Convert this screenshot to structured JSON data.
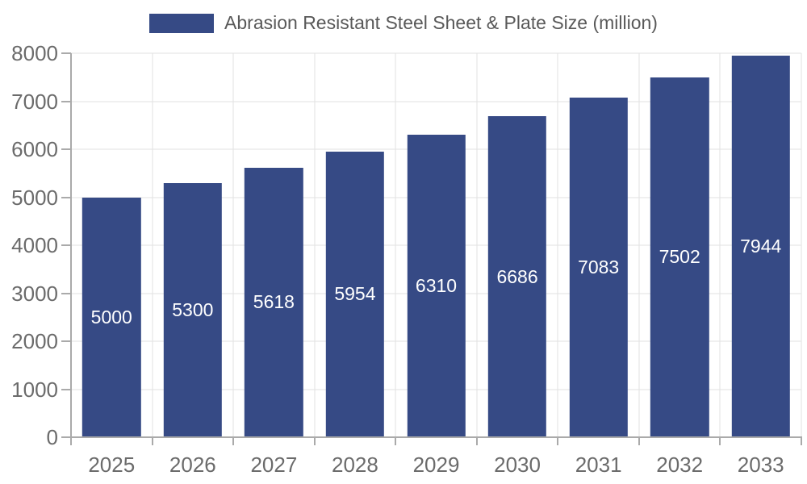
{
  "legend": {
    "label": "Abrasion Resistant Steel Sheet & Plate Size (million)"
  },
  "colors": {
    "bar": "#364A85",
    "grid_line": "#e2e2e2",
    "axis_line": "#aaaaaa",
    "tick_label": "#6b6b6b",
    "value_label": "#ffffff",
    "legend_text": "#595959"
  },
  "chart_data": {
    "type": "bar",
    "title": "Abrasion Resistant Steel Sheet & Plate Size (million)",
    "categories": [
      "2025",
      "2026",
      "2027",
      "2028",
      "2029",
      "2030",
      "2031",
      "2032",
      "2033"
    ],
    "values": [
      5000,
      5300,
      5618,
      5954,
      6310,
      6686,
      7083,
      7502,
      7944
    ],
    "xlabel": "",
    "ylabel": "",
    "ylim": [
      0,
      8000
    ],
    "y_ticks": [
      0,
      1000,
      2000,
      3000,
      4000,
      5000,
      6000,
      7000,
      8000
    ],
    "grid": true,
    "legend_position": "top",
    "value_label_position": "inside-center",
    "bar_width_fraction": 0.72
  }
}
